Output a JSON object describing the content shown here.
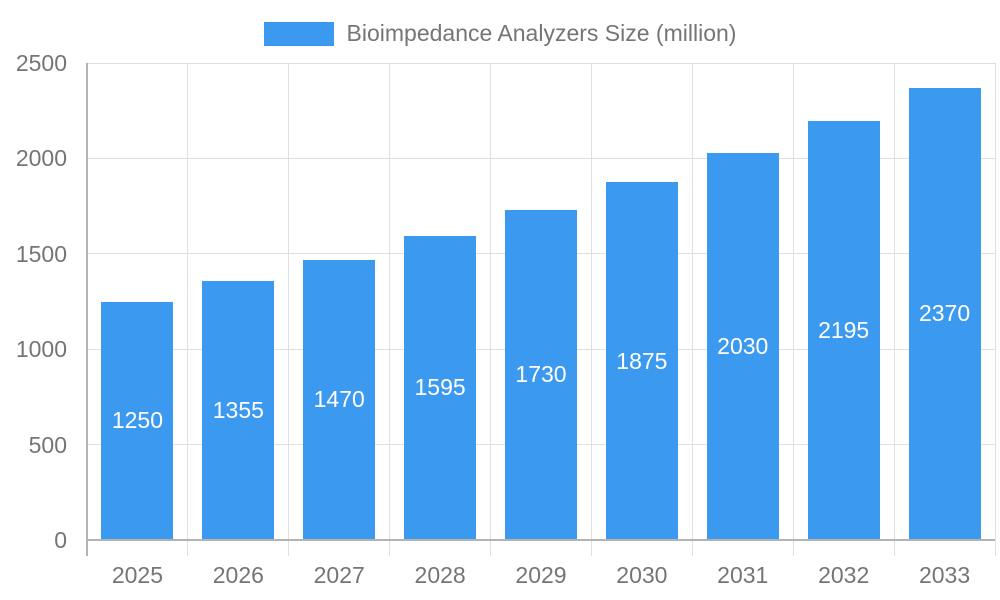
{
  "legend": {
    "label": "Bioimpedance Analyzers Size (million)"
  },
  "chart_data": {
    "type": "bar",
    "title": "Bioimpedance Analyzers Size (million)",
    "categories": [
      "2025",
      "2026",
      "2027",
      "2028",
      "2029",
      "2030",
      "2031",
      "2032",
      "2033"
    ],
    "values": [
      1250,
      1355,
      1470,
      1595,
      1730,
      1875,
      2030,
      2195,
      2370
    ],
    "xlabel": "",
    "ylabel": "",
    "ylim": [
      0,
      2500
    ],
    "yticks": [
      0,
      500,
      1000,
      1500,
      2000,
      2500
    ],
    "grid": true,
    "legend_position": "top",
    "value_labels": "centered-inside-bars"
  },
  "colors": {
    "bar": "#3B99F0",
    "grid": "#e0e0e0",
    "axis": "#b3b3b3",
    "text": "#757575",
    "value_label": "#ffffff",
    "background": "#ffffff"
  }
}
